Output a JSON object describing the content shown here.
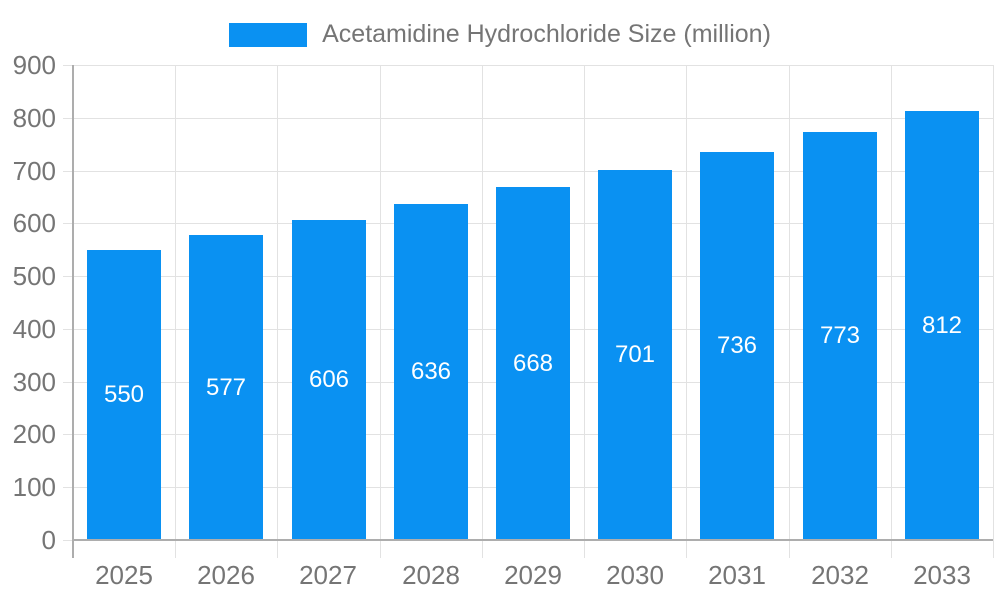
{
  "legend": {
    "label": "Acetamidine Hydrochloride Size (million)"
  },
  "colors": {
    "bar": "#0A91F2",
    "axis_line": "#ADADAD",
    "grid_line": "#E2E2E2",
    "axis_label": "#757575",
    "value_label": "#FFFFFF",
    "legend_text": "#757575",
    "background": "#FFFFFF"
  },
  "chart_data": {
    "type": "bar",
    "title": "",
    "categories": [
      "2025",
      "2026",
      "2027",
      "2028",
      "2029",
      "2030",
      "2031",
      "2032",
      "2033"
    ],
    "series": [
      {
        "name": "Acetamidine Hydrochloride Size (million)",
        "values": [
          550,
          577,
          606,
          636,
          668,
          701,
          736,
          773,
          812
        ]
      }
    ],
    "xlabel": "",
    "ylabel": "",
    "ylim": [
      0,
      900
    ],
    "y_ticks": [
      0,
      100,
      200,
      300,
      400,
      500,
      600,
      700,
      800,
      900
    ],
    "grid": true,
    "legend_position": "top",
    "value_label_position": "inside-center"
  }
}
